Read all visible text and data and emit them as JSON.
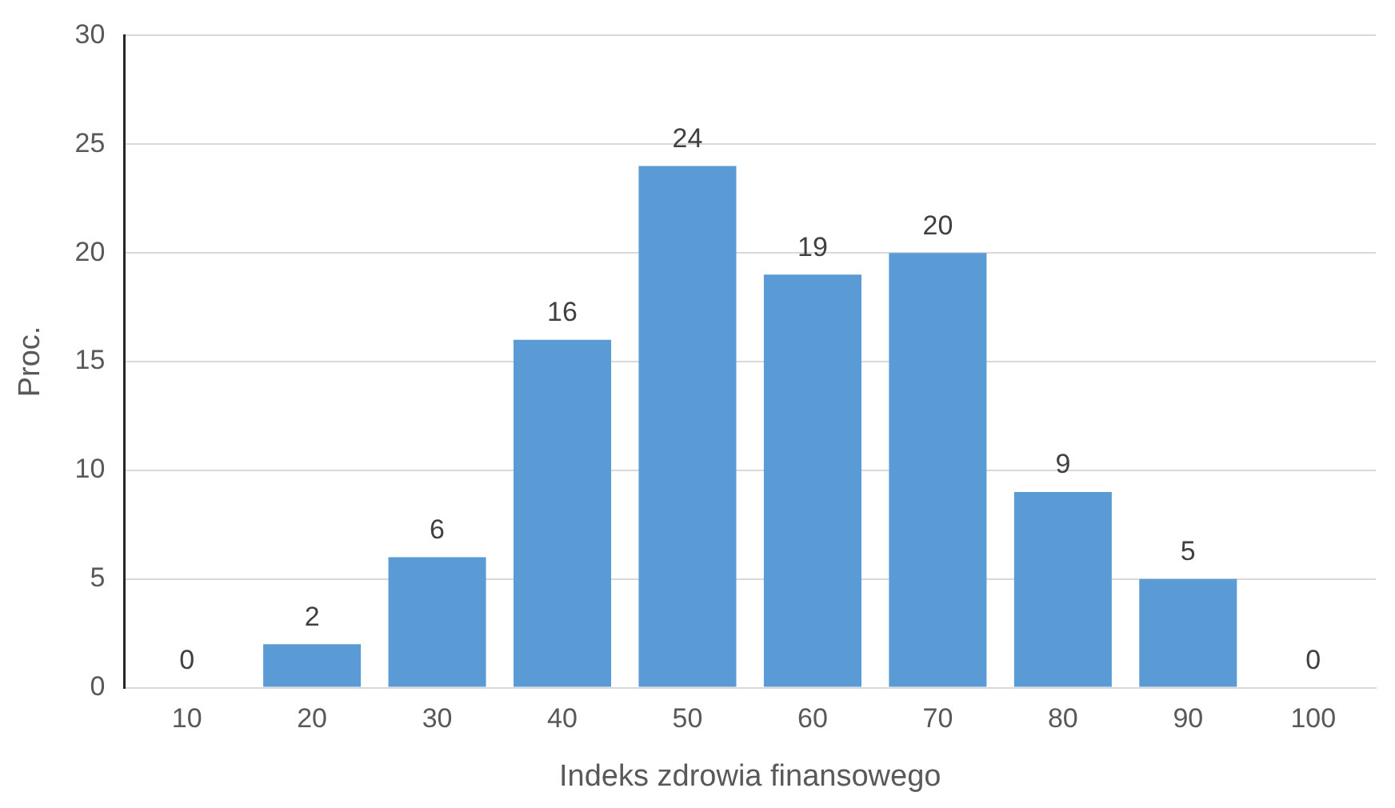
{
  "chart_data": {
    "type": "bar",
    "xlabel": "Indeks zdrowia finansowego",
    "ylabel": "Proc.",
    "categories": [
      "10",
      "20",
      "30",
      "40",
      "50",
      "60",
      "70",
      "80",
      "90",
      "100"
    ],
    "values": [
      0,
      2,
      6,
      16,
      24,
      19,
      20,
      9,
      5,
      0
    ],
    "color": "#5b9bd5",
    "ylim": [
      0,
      30
    ],
    "yticks": [
      0,
      5,
      10,
      15,
      20,
      25,
      30
    ],
    "grid": "y",
    "data_labels": true
  }
}
